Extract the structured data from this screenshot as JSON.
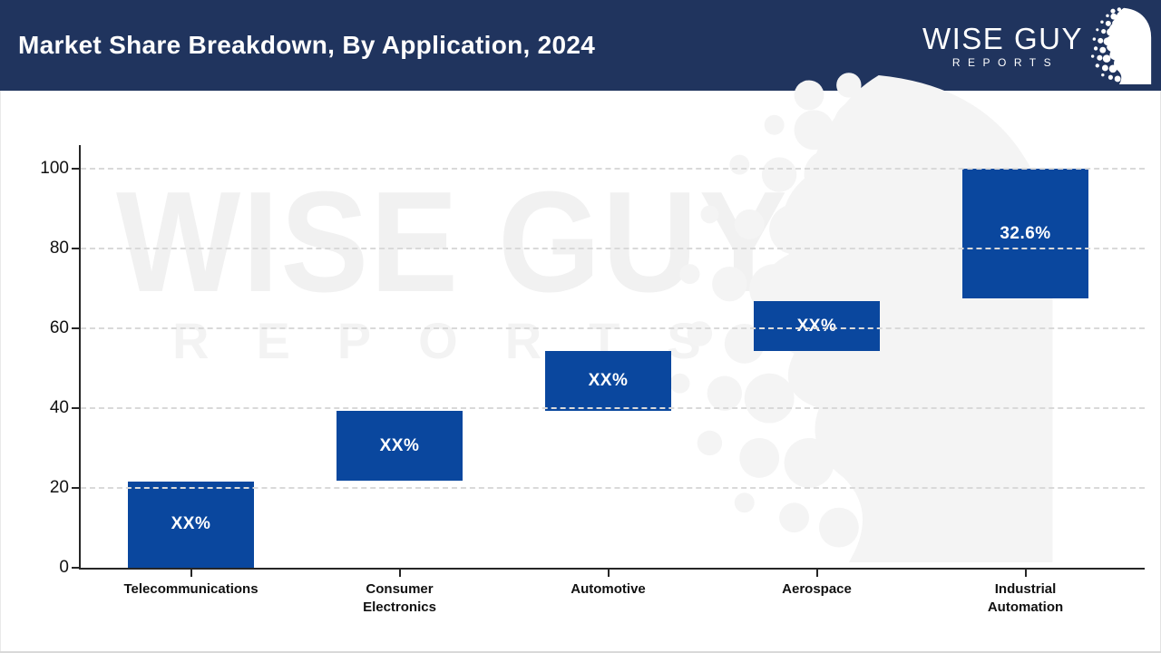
{
  "header": {
    "title": "Market Share Breakdown, By Application, 2024",
    "logo": {
      "brand": "WISE GUY",
      "sub": "REPORTS"
    },
    "background_color": "#20345e"
  },
  "watermark": {
    "brand": "WISE GUY",
    "sub": "REPORTS"
  },
  "chart_data": {
    "type": "bar",
    "variant": "waterfall",
    "title": "Market Share Breakdown, By Application, 2024",
    "categories": [
      "Telecommunications",
      "Consumer Electronics",
      "Automotive",
      "Aerospace",
      "Industrial Automation"
    ],
    "category_lines": [
      [
        "Telecommunications"
      ],
      [
        "Consumer",
        "Electronics"
      ],
      [
        "Automotive"
      ],
      [
        "Aerospace"
      ],
      [
        "Industrial",
        "Automation"
      ]
    ],
    "segments": [
      {
        "category": "Telecommunications",
        "start": 0,
        "end": 21.6,
        "label": "XX%"
      },
      {
        "category": "Consumer Electronics",
        "start": 21.8,
        "end": 39.3,
        "label": "XX%"
      },
      {
        "category": "Automotive",
        "start": 39.3,
        "end": 54.3,
        "label": "XX%"
      },
      {
        "category": "Aerospace",
        "start": 54.3,
        "end": 66.8,
        "label": "XX%"
      },
      {
        "category": "Industrial Automation",
        "start": 67.4,
        "end": 100,
        "label": "32.6%"
      }
    ],
    "xlabel": "",
    "ylabel": "",
    "ylim": [
      0,
      100
    ],
    "yticks": [
      0,
      20,
      40,
      60,
      80,
      100
    ],
    "grid": {
      "horizontal": true,
      "style": "dashed",
      "color": "#d9d9d9",
      "drawn_over_bars": true
    },
    "bar_color": "#0a479e",
    "bar_label_color": "#ffffff",
    "legend": null
  }
}
